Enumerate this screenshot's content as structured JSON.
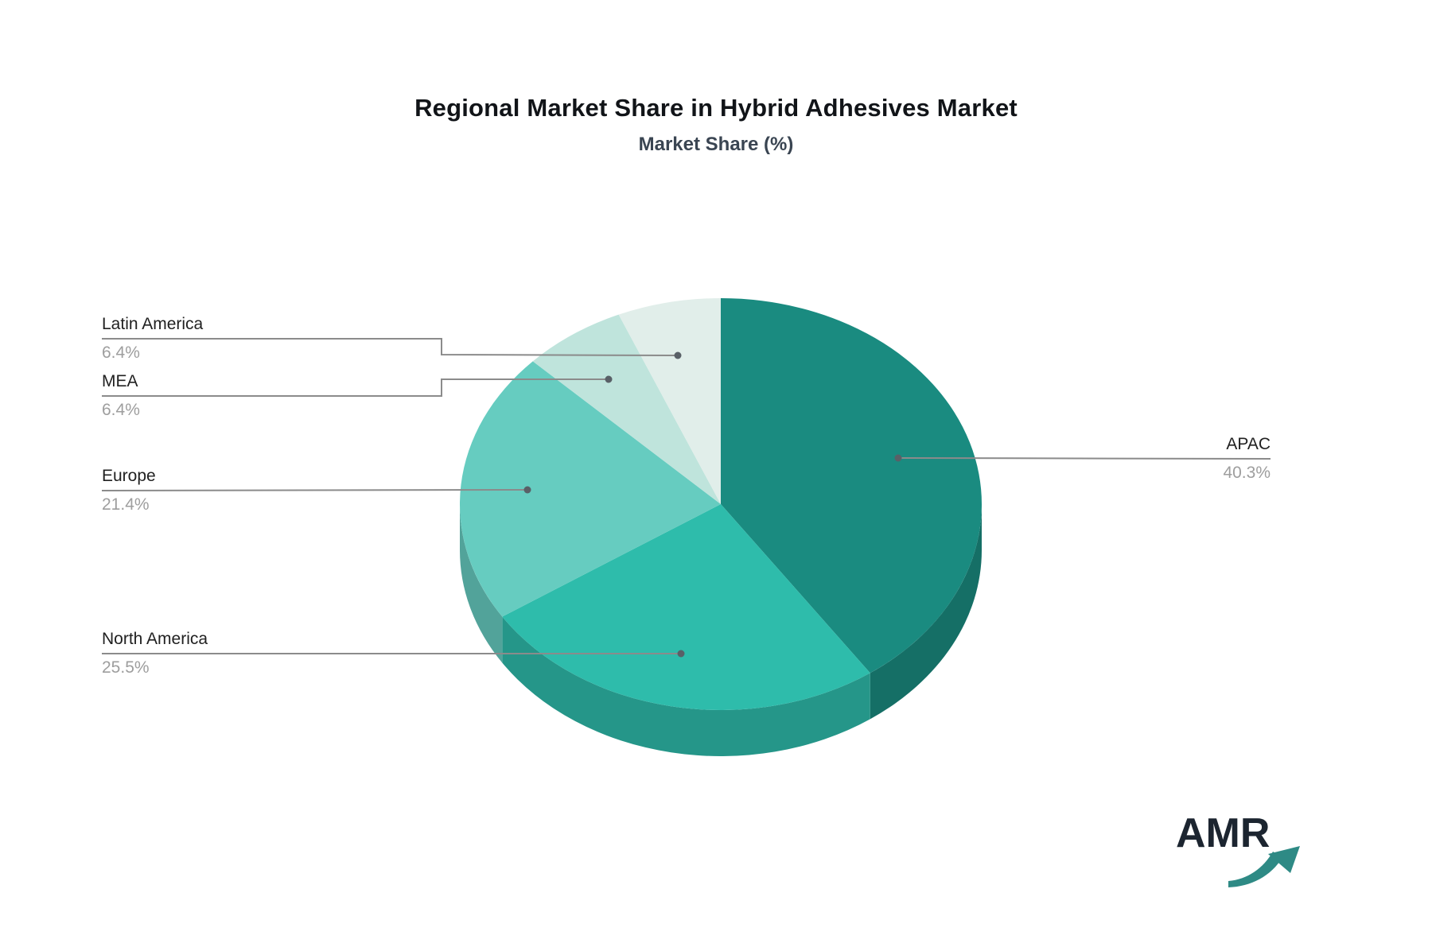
{
  "title": "Regional Market Share in Hybrid Adhesives Market",
  "subtitle": "Market Share (%)",
  "chart_data": {
    "type": "pie",
    "title": "Regional Market Share in Hybrid Adhesives Market",
    "subtitle": "Market Share (%)",
    "unit": "%",
    "style": "3d-pie",
    "direction": "clockwise",
    "start_angle_deg": 0,
    "legend_position": "none",
    "labels": "outside-with-leader-lines",
    "slices": [
      {
        "label": "APAC",
        "value": 40.3,
        "color": "#1a8b80"
      },
      {
        "label": "North America",
        "value": 25.5,
        "color": "#2ebcab"
      },
      {
        "label": "Europe",
        "value": 21.4,
        "color": "#66ccc0"
      },
      {
        "label": "MEA",
        "value": 6.4,
        "color": "#bfe4dc"
      },
      {
        "label": "Latin America",
        "value": 6.4,
        "color": "#e1eeea"
      }
    ]
  },
  "callouts": {
    "latin_america": {
      "name": "Latin America",
      "value": "6.4%"
    },
    "mea": {
      "name": "MEA",
      "value": "6.4%"
    },
    "europe": {
      "name": "Europe",
      "value": "21.4%"
    },
    "north_america": {
      "name": "North America",
      "value": "25.5%"
    },
    "apac": {
      "name": "APAC",
      "value": "40.3%"
    }
  },
  "logo": {
    "text": "AMR",
    "text_color": "#1c2530",
    "arrow_color": "#2e8a85"
  },
  "colors": {
    "leader_line": "#8b8b8b",
    "leader_dot": "#596067",
    "value_text": "#9e9e9e",
    "label_text": "#212121"
  }
}
